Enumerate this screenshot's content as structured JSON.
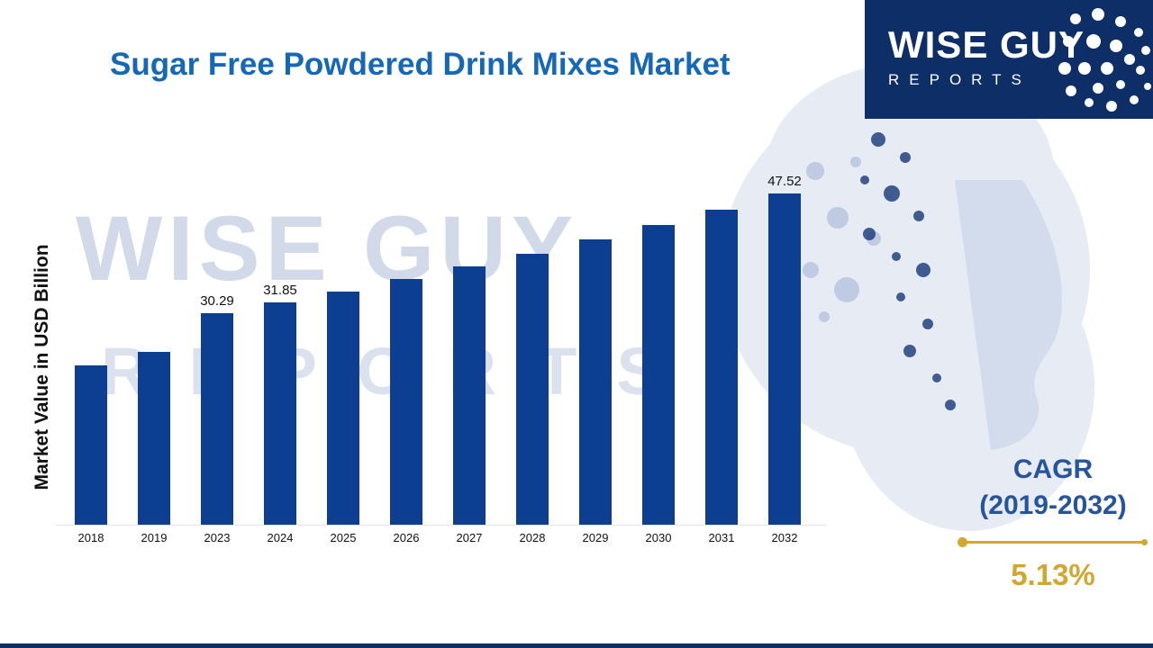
{
  "logo": {
    "line1": "WISE GUY",
    "line2": "REPORTS"
  },
  "watermark": {
    "line1": "WISE GUY",
    "line2": "REPORTS"
  },
  "cagr": {
    "label_line1": "CAGR",
    "label_line2": "(2019-2032)",
    "value": "5.13%"
  },
  "colors": {
    "title_blue": "#1568b8",
    "bar_navy": "#0c3e92",
    "header_navy": "#0d2e66",
    "gold": "#d2a62f",
    "cagr_text_blue": "#27549e",
    "watermark_gray_blue": "#aebbd6"
  },
  "chart_data": {
    "type": "bar",
    "title": "Sugar Free Powdered Drink Mixes Market",
    "ylabel": "Market Value in USD Billion",
    "xlabel": "",
    "categories": [
      "2018",
      "2019",
      "2023",
      "2024",
      "2025",
      "2026",
      "2027",
      "2028",
      "2029",
      "2030",
      "2031",
      "2032"
    ],
    "values": [
      22.8,
      24.8,
      30.29,
      31.85,
      33.5,
      35.2,
      37.0,
      38.9,
      40.9,
      43.0,
      45.2,
      47.52
    ],
    "labeled_points": {
      "2023": "30.29",
      "2024": "31.85",
      "2032": "47.52"
    },
    "ylim": [
      0,
      50
    ],
    "grid": false,
    "legend": "none",
    "bar_color": "#0c3e92"
  }
}
